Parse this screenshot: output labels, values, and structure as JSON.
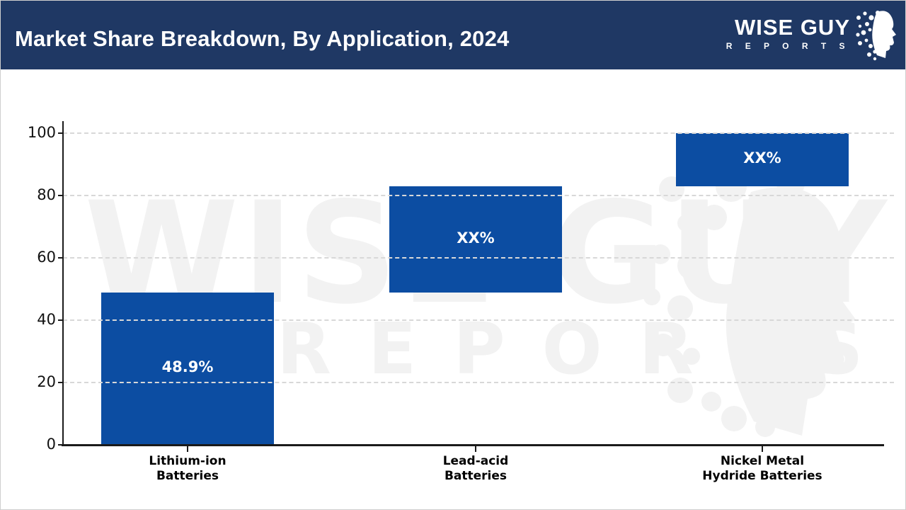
{
  "header": {
    "title": "Market Share Breakdown, By Application, 2024",
    "bg_color": "#1f3864",
    "logo": {
      "line1": "WISE GUY",
      "line2": "R E P O R T S"
    }
  },
  "watermark": {
    "line1": "WISE GUY",
    "line2": "REPORTS"
  },
  "chart_data": {
    "type": "bar",
    "subtype": "waterfall",
    "title": "Market Share Breakdown, By Application, 2024",
    "categories": [
      "Lithium-ion\nBatteries",
      "Lead-acid\nBatteries",
      "Nickel Metal\nHydride Batteries"
    ],
    "segments": [
      {
        "category": "Lithium-ion Batteries",
        "start": 0,
        "end": 48.9,
        "label": "48.9%"
      },
      {
        "category": "Lead-acid Batteries",
        "start": 48.9,
        "end": 83,
        "label": "XX%"
      },
      {
        "category": "Nickel Metal Hydride Batteries",
        "start": 83,
        "end": 100,
        "label": "XX%"
      }
    ],
    "xlabel": "",
    "ylabel": "",
    "ylim": [
      0,
      100
    ],
    "yticks": [
      0,
      20,
      40,
      60,
      80,
      100
    ],
    "grid": "horizontal-dashed",
    "legend": "none",
    "bar_color": "#0c4da2",
    "bar_label_color": "#ffffff",
    "axis_color": "#1a1a1a",
    "grid_color": "#d8d8d8"
  }
}
